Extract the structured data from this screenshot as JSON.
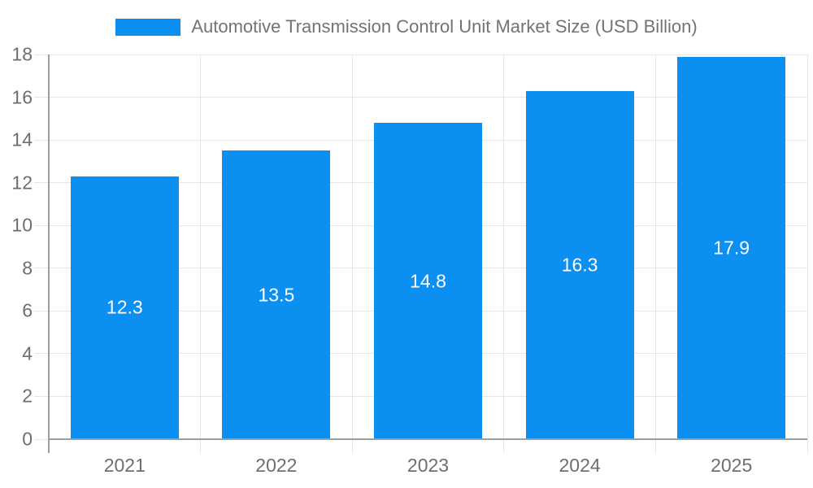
{
  "chart_data": {
    "type": "bar",
    "title": "Automotive Transmission Control Unit Market Size (USD Billion)",
    "categories": [
      "2021",
      "2022",
      "2023",
      "2024",
      "2025"
    ],
    "values": [
      12.3,
      13.5,
      14.8,
      16.3,
      17.9
    ],
    "value_labels": [
      "12.3",
      "13.5",
      "14.8",
      "16.3",
      "17.9"
    ],
    "xlabel": "",
    "ylabel": "",
    "ylim": [
      0,
      18
    ],
    "yticks": [
      0,
      2,
      4,
      6,
      8,
      10,
      12,
      14,
      16,
      18
    ],
    "grid": true,
    "legend_position": "top"
  },
  "colors": {
    "bar": "#0b90f2",
    "grid": "#e6e6e6",
    "axis": "#9e9e9e",
    "axis_label": "#6e6e6e",
    "title": "#737373",
    "value_label": "#ffffff",
    "background": "#ffffff"
  }
}
